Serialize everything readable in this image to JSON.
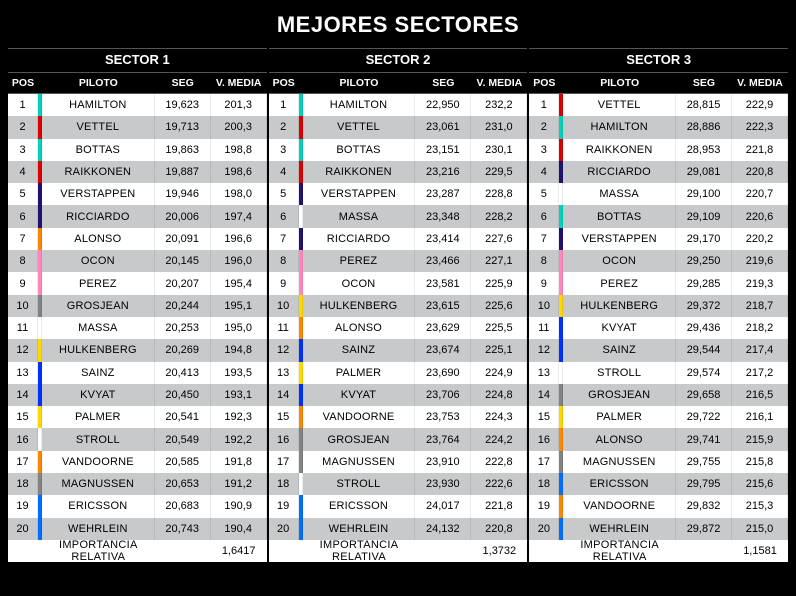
{
  "title": "MEJORES SECTORES",
  "column_headers": {
    "pos": "POS",
    "piloto": "PILOTO",
    "seg": "SEG",
    "vmedia": "V. MEDIA"
  },
  "footer_label": "IMPORTANCIA RELATIVA",
  "team_colors": {
    "HAMILTON": "#00d2be",
    "BOTTAS": "#00d2be",
    "VETTEL": "#dc0000",
    "RAIKKONEN": "#dc0000",
    "VERSTAPPEN": "#1e1470",
    "RICCIARDO": "#1e1470",
    "ALONSO": "#ff8700",
    "VANDOORNE": "#ff8700",
    "OCON": "#ff87bc",
    "PEREZ": "#ff87bc",
    "GROSJEAN": "#828282",
    "MAGNUSSEN": "#828282",
    "MASSA": "#ffffff",
    "STROLL": "#ffffff",
    "HULKENBERG": "#ffd800",
    "PALMER": "#ffd800",
    "SAINZ": "#0032ff",
    "KVYAT": "#0032ff",
    "ERICSSON": "#006eff",
    "WEHRLEIN": "#006eff"
  },
  "row_bg": {
    "odd": "#ffffff",
    "even": "#c7c9cb"
  },
  "sectors": [
    {
      "name": "SECTOR 1",
      "importance": "1,6417",
      "rows": [
        {
          "pos": "1",
          "piloto": "HAMILTON",
          "seg": "19,623",
          "vmedia": "201,3"
        },
        {
          "pos": "2",
          "piloto": "VETTEL",
          "seg": "19,713",
          "vmedia": "200,3"
        },
        {
          "pos": "3",
          "piloto": "BOTTAS",
          "seg": "19,863",
          "vmedia": "198,8"
        },
        {
          "pos": "4",
          "piloto": "RAIKKONEN",
          "seg": "19,887",
          "vmedia": "198,6"
        },
        {
          "pos": "5",
          "piloto": "VERSTAPPEN",
          "seg": "19,946",
          "vmedia": "198,0"
        },
        {
          "pos": "6",
          "piloto": "RICCIARDO",
          "seg": "20,006",
          "vmedia": "197,4"
        },
        {
          "pos": "7",
          "piloto": "ALONSO",
          "seg": "20,091",
          "vmedia": "196,6"
        },
        {
          "pos": "8",
          "piloto": "OCON",
          "seg": "20,145",
          "vmedia": "196,0"
        },
        {
          "pos": "9",
          "piloto": "PEREZ",
          "seg": "20,207",
          "vmedia": "195,4"
        },
        {
          "pos": "10",
          "piloto": "GROSJEAN",
          "seg": "20,244",
          "vmedia": "195,1"
        },
        {
          "pos": "11",
          "piloto": "MASSA",
          "seg": "20,253",
          "vmedia": "195,0"
        },
        {
          "pos": "12",
          "piloto": "HULKENBERG",
          "seg": "20,269",
          "vmedia": "194,8"
        },
        {
          "pos": "13",
          "piloto": "SAINZ",
          "seg": "20,413",
          "vmedia": "193,5"
        },
        {
          "pos": "14",
          "piloto": "KVYAT",
          "seg": "20,450",
          "vmedia": "193,1"
        },
        {
          "pos": "15",
          "piloto": "PALMER",
          "seg": "20,541",
          "vmedia": "192,3"
        },
        {
          "pos": "16",
          "piloto": "STROLL",
          "seg": "20,549",
          "vmedia": "192,2"
        },
        {
          "pos": "17",
          "piloto": "VANDOORNE",
          "seg": "20,585",
          "vmedia": "191,8"
        },
        {
          "pos": "18",
          "piloto": "MAGNUSSEN",
          "seg": "20,653",
          "vmedia": "191,2"
        },
        {
          "pos": "19",
          "piloto": "ERICSSON",
          "seg": "20,683",
          "vmedia": "190,9"
        },
        {
          "pos": "20",
          "piloto": "WEHRLEIN",
          "seg": "20,743",
          "vmedia": "190,4"
        }
      ]
    },
    {
      "name": "SECTOR 2",
      "importance": "1,3732",
      "rows": [
        {
          "pos": "1",
          "piloto": "HAMILTON",
          "seg": "22,950",
          "vmedia": "232,2"
        },
        {
          "pos": "2",
          "piloto": "VETTEL",
          "seg": "23,061",
          "vmedia": "231,0"
        },
        {
          "pos": "3",
          "piloto": "BOTTAS",
          "seg": "23,151",
          "vmedia": "230,1"
        },
        {
          "pos": "4",
          "piloto": "RAIKKONEN",
          "seg": "23,216",
          "vmedia": "229,5"
        },
        {
          "pos": "5",
          "piloto": "VERSTAPPEN",
          "seg": "23,287",
          "vmedia": "228,8"
        },
        {
          "pos": "6",
          "piloto": "MASSA",
          "seg": "23,348",
          "vmedia": "228,2"
        },
        {
          "pos": "7",
          "piloto": "RICCIARDO",
          "seg": "23,414",
          "vmedia": "227,6"
        },
        {
          "pos": "8",
          "piloto": "PEREZ",
          "seg": "23,466",
          "vmedia": "227,1"
        },
        {
          "pos": "9",
          "piloto": "OCON",
          "seg": "23,581",
          "vmedia": "225,9"
        },
        {
          "pos": "10",
          "piloto": "HULKENBERG",
          "seg": "23,615",
          "vmedia": "225,6"
        },
        {
          "pos": "11",
          "piloto": "ALONSO",
          "seg": "23,629",
          "vmedia": "225,5"
        },
        {
          "pos": "12",
          "piloto": "SAINZ",
          "seg": "23,674",
          "vmedia": "225,1"
        },
        {
          "pos": "13",
          "piloto": "PALMER",
          "seg": "23,690",
          "vmedia": "224,9"
        },
        {
          "pos": "14",
          "piloto": "KVYAT",
          "seg": "23,706",
          "vmedia": "224,8"
        },
        {
          "pos": "15",
          "piloto": "VANDOORNE",
          "seg": "23,753",
          "vmedia": "224,3"
        },
        {
          "pos": "16",
          "piloto": "GROSJEAN",
          "seg": "23,764",
          "vmedia": "224,2"
        },
        {
          "pos": "17",
          "piloto": "MAGNUSSEN",
          "seg": "23,910",
          "vmedia": "222,8"
        },
        {
          "pos": "18",
          "piloto": "STROLL",
          "seg": "23,930",
          "vmedia": "222,6"
        },
        {
          "pos": "19",
          "piloto": "ERICSSON",
          "seg": "24,017",
          "vmedia": "221,8"
        },
        {
          "pos": "20",
          "piloto": "WEHRLEIN",
          "seg": "24,132",
          "vmedia": "220,8"
        }
      ]
    },
    {
      "name": "SECTOR 3",
      "importance": "1,1581",
      "rows": [
        {
          "pos": "1",
          "piloto": "VETTEL",
          "seg": "28,815",
          "vmedia": "222,9"
        },
        {
          "pos": "2",
          "piloto": "HAMILTON",
          "seg": "28,886",
          "vmedia": "222,3"
        },
        {
          "pos": "3",
          "piloto": "RAIKKONEN",
          "seg": "28,953",
          "vmedia": "221,8"
        },
        {
          "pos": "4",
          "piloto": "RICCIARDO",
          "seg": "29,081",
          "vmedia": "220,8"
        },
        {
          "pos": "5",
          "piloto": "MASSA",
          "seg": "29,100",
          "vmedia": "220,7"
        },
        {
          "pos": "6",
          "piloto": "BOTTAS",
          "seg": "29,109",
          "vmedia": "220,6"
        },
        {
          "pos": "7",
          "piloto": "VERSTAPPEN",
          "seg": "29,170",
          "vmedia": "220,2"
        },
        {
          "pos": "8",
          "piloto": "OCON",
          "seg": "29,250",
          "vmedia": "219,6"
        },
        {
          "pos": "9",
          "piloto": "PEREZ",
          "seg": "29,285",
          "vmedia": "219,3"
        },
        {
          "pos": "10",
          "piloto": "HULKENBERG",
          "seg": "29,372",
          "vmedia": "218,7"
        },
        {
          "pos": "11",
          "piloto": "KVYAT",
          "seg": "29,436",
          "vmedia": "218,2"
        },
        {
          "pos": "12",
          "piloto": "SAINZ",
          "seg": "29,544",
          "vmedia": "217,4"
        },
        {
          "pos": "13",
          "piloto": "STROLL",
          "seg": "29,574",
          "vmedia": "217,2"
        },
        {
          "pos": "14",
          "piloto": "GROSJEAN",
          "seg": "29,658",
          "vmedia": "216,5"
        },
        {
          "pos": "15",
          "piloto": "PALMER",
          "seg": "29,722",
          "vmedia": "216,1"
        },
        {
          "pos": "16",
          "piloto": "ALONSO",
          "seg": "29,741",
          "vmedia": "215,9"
        },
        {
          "pos": "17",
          "piloto": "MAGNUSSEN",
          "seg": "29,755",
          "vmedia": "215,8"
        },
        {
          "pos": "18",
          "piloto": "ERICSSON",
          "seg": "29,795",
          "vmedia": "215,6"
        },
        {
          "pos": "19",
          "piloto": "VANDOORNE",
          "seg": "29,832",
          "vmedia": "215,3"
        },
        {
          "pos": "20",
          "piloto": "WEHRLEIN",
          "seg": "29,872",
          "vmedia": "215,0"
        }
      ]
    }
  ]
}
